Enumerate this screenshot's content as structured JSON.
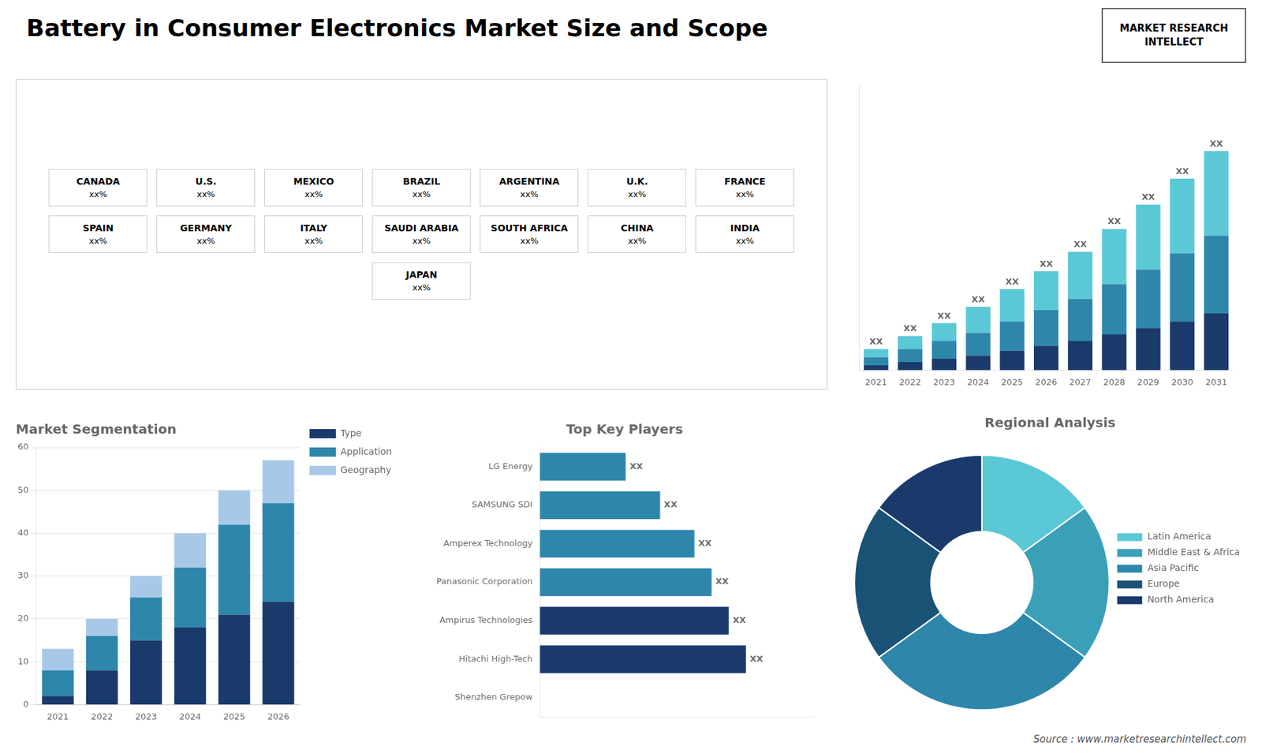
{
  "title": "Battery in Consumer Electronics Market Size and Scope",
  "annotations": [
    "MARKET RESEARCH INTELLECT",
    "Source : www.marketresearchintellect.com"
  ],
  "chart_data": [
    {
      "type": "map",
      "categories": [
        "CANADA",
        "U.S.",
        "MEXICO",
        "BRAZIL",
        "ARGENTINA",
        "U.K.",
        "FRANCE",
        "SPAIN",
        "GERMANY",
        "ITALY",
        "SAUDI ARABIA",
        "SOUTH AFRICA",
        "CHINA",
        "INDIA",
        "JAPAN"
      ],
      "annotations": [
        "xx%",
        "xx%",
        "xx%",
        "xx%",
        "xx%",
        "xx%",
        "xx%",
        "xx%",
        "xx%",
        "xx%",
        "xx%",
        "xx%",
        "xx%",
        "xx%",
        "xx%"
      ]
    },
    {
      "type": "bar",
      "stacked": true,
      "categories": [
        "2021",
        "2022",
        "2023",
        "2024",
        "2025",
        "2026",
        "2027",
        "2028",
        "2029",
        "2030",
        "2031"
      ],
      "series": [
        {
          "color": "#1a3a6b",
          "values": [
            3,
            5,
            7,
            9,
            12,
            15,
            18,
            22,
            26,
            30,
            35
          ]
        },
        {
          "color": "#2e86ab",
          "values": [
            5,
            8,
            11,
            14,
            18,
            22,
            26,
            31,
            36,
            42,
            48
          ]
        },
        {
          "color": "#5bc8d6",
          "values": [
            5,
            8,
            11,
            16,
            20,
            24,
            29,
            34,
            40,
            46,
            52
          ]
        }
      ],
      "annotations": [
        "XX",
        "XX",
        "XX",
        "XX",
        "XX",
        "XX",
        "XX",
        "XX",
        "XX",
        "XX",
        "XX"
      ],
      "ylim": [
        0,
        175.5
      ],
      "tick_labels": "x",
      "grid": false
    },
    {
      "type": "bar",
      "title": "Market Segmentation",
      "stacked": true,
      "categories": [
        "2021",
        "2022",
        "2023",
        "2024",
        "2025",
        "2026"
      ],
      "series": [
        {
          "name": "Type",
          "color": "#1a3a6b",
          "values": [
            2,
            8,
            15,
            18,
            21,
            24
          ]
        },
        {
          "name": "Application",
          "color": "#2e86ab",
          "values": [
            6,
            8,
            10,
            14,
            21,
            23
          ]
        },
        {
          "name": "Geography",
          "color": "#a8c8e8",
          "values": [
            5,
            4,
            5,
            8,
            8,
            10
          ]
        }
      ],
      "ylim": [
        0,
        60
      ],
      "yticks": [
        0,
        10,
        20,
        30,
        40,
        50,
        60
      ],
      "grid": true,
      "legend": "right"
    },
    {
      "type": "bar",
      "title": "Top Key Players",
      "orientation": "horizontal",
      "categories": [
        "LG Energy",
        "SAMSUNG SDI",
        "Amperex Technology",
        "Panasonic Corporation",
        "Ampirus Technologies",
        "Hitachi High-Tech",
        "Shenzhen Grepow"
      ],
      "values": [
        5,
        7,
        9,
        10,
        11,
        12,
        0
      ],
      "colors": [
        "#2e86ab",
        "#2e86ab",
        "#2e86ab",
        "#2e86ab",
        "#1a3a6b",
        "#1a3a6b",
        "#1a3a6b"
      ],
      "annotations": [
        "XX",
        "XX",
        "XX",
        "XX",
        "XX",
        "XX",
        null
      ],
      "xlim": [
        0,
        16
      ],
      "tick_labels": "y",
      "grid": false
    },
    {
      "type": "doughnut",
      "title": "Regional Analysis",
      "categories": [
        "Latin America",
        "Middle East & Africa",
        "Asia Pacific",
        "Europe",
        "North America"
      ],
      "values": [
        15,
        20,
        30,
        20,
        15
      ],
      "colors": [
        "#5bc8d6",
        "#3aa0b8",
        "#2e86ab",
        "#1a5276",
        "#1a3a6b"
      ],
      "legend": "right"
    }
  ]
}
